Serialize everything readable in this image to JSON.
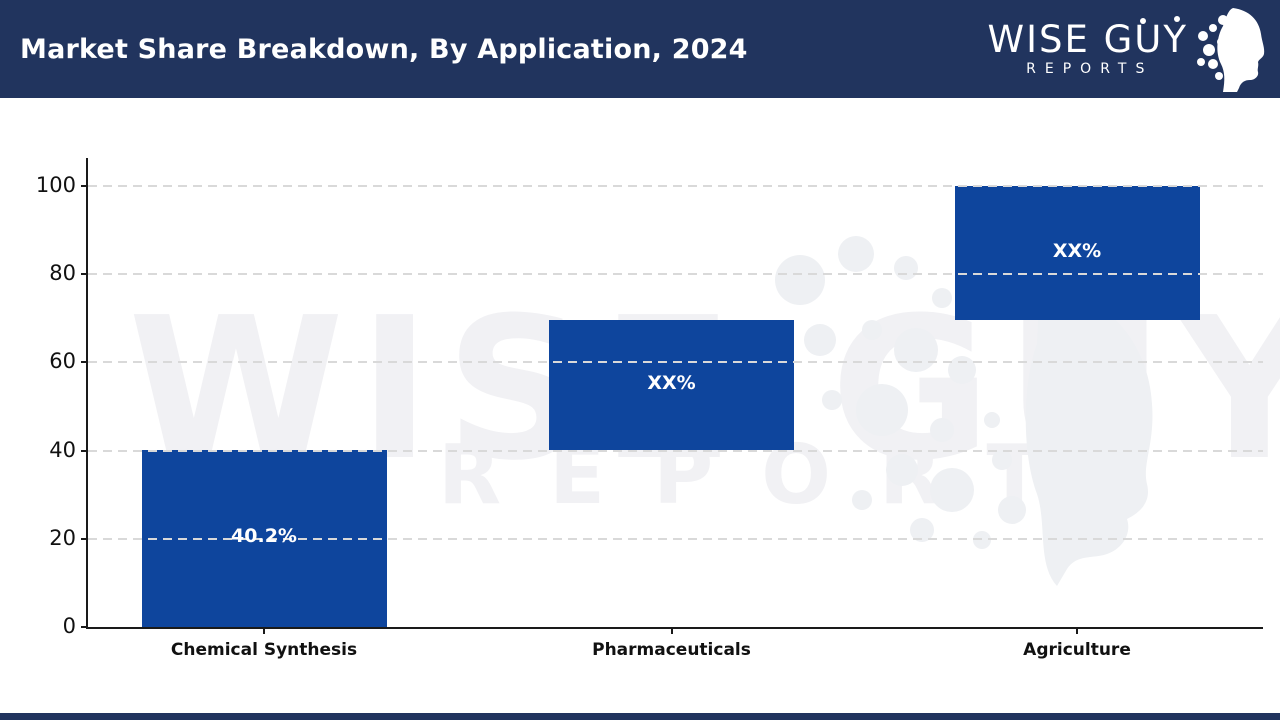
{
  "header": {
    "title": "Market Share Breakdown, By Application, 2024",
    "logo": {
      "line1": "WISE GUY",
      "line2": "REPORTS"
    }
  },
  "watermark": {
    "line1": "WISE GUY",
    "line2": "REPORTS"
  },
  "chart_data": {
    "type": "bar",
    "subtype": "floating-segment (waterfall-style market share)",
    "title": "Market Share Breakdown, By Application, 2024",
    "categories": [
      "Chemical Synthesis",
      "Pharmaceuticals",
      "Agriculture"
    ],
    "segments": [
      {
        "category": "Chemical Synthesis",
        "start": 0,
        "end": 40.2,
        "label": "40.2%"
      },
      {
        "category": "Pharmaceuticals",
        "start": 40.2,
        "end": 69.6,
        "label": "XX%"
      },
      {
        "category": "Agriculture",
        "start": 69.6,
        "end": 100,
        "label": "XX%"
      }
    ],
    "yticks": [
      0,
      20,
      40,
      60,
      80,
      100
    ],
    "ylim": [
      0,
      107
    ],
    "xlabel": "",
    "ylabel": "",
    "grid": "horizontal dashed, drawn above bars",
    "legend": "none"
  },
  "colors": {
    "header_navy": "#21345e",
    "bar_blue": "#0e459d",
    "grid_gray": "#d9d9d9",
    "text_dark": "#111111",
    "watermark_gray": "#f1f1f4",
    "white": "#ffffff"
  }
}
